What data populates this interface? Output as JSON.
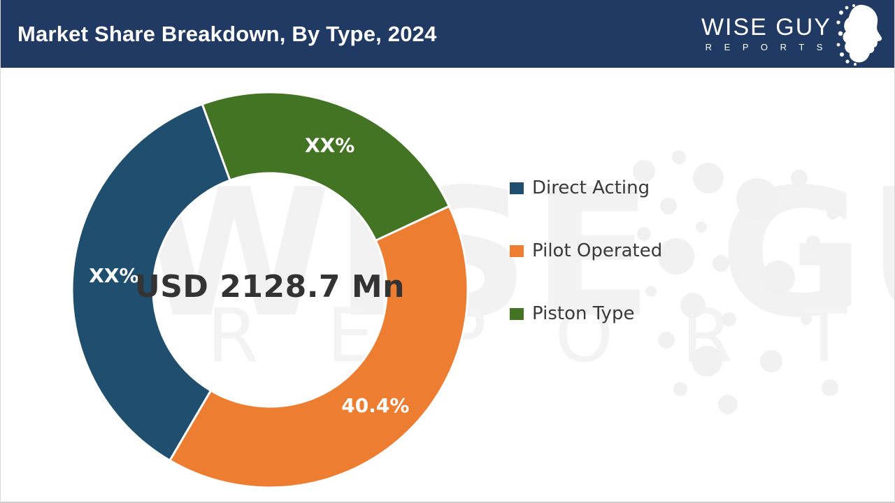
{
  "header": {
    "title": "Market Share Breakdown, By Type, 2024",
    "bg_color": "#213A64",
    "logo": {
      "line1": "WISE GUY",
      "line2": "R E P O R T S"
    }
  },
  "watermark": {
    "line1": "WISE GUY",
    "line2": "R E P O R T S"
  },
  "chart_data": {
    "type": "pie",
    "subtype": "donut",
    "title": "Market Share Breakdown, By Type, 2024",
    "center_label": "USD 2128.7 Mn",
    "start_angle_deg_clockwise_from_top": -20,
    "segments": [
      {
        "name": "Piston Type",
        "display_label": "XX%",
        "pct": 23.6,
        "color": "#437423"
      },
      {
        "name": "Pilot Operated",
        "display_label": "40.4%",
        "pct": 40.4,
        "color": "#ED7D31"
      },
      {
        "name": "Direct Acting",
        "display_label": "XX%",
        "pct": 36.0,
        "color": "#1F4E6E"
      }
    ],
    "legend_position": "right",
    "legend": [
      {
        "label": "Direct Acting",
        "color": "#1F4E6E"
      },
      {
        "label": "Pilot Operated",
        "color": "#ED7D31"
      },
      {
        "label": "Piston Type",
        "color": "#437423"
      }
    ]
  }
}
